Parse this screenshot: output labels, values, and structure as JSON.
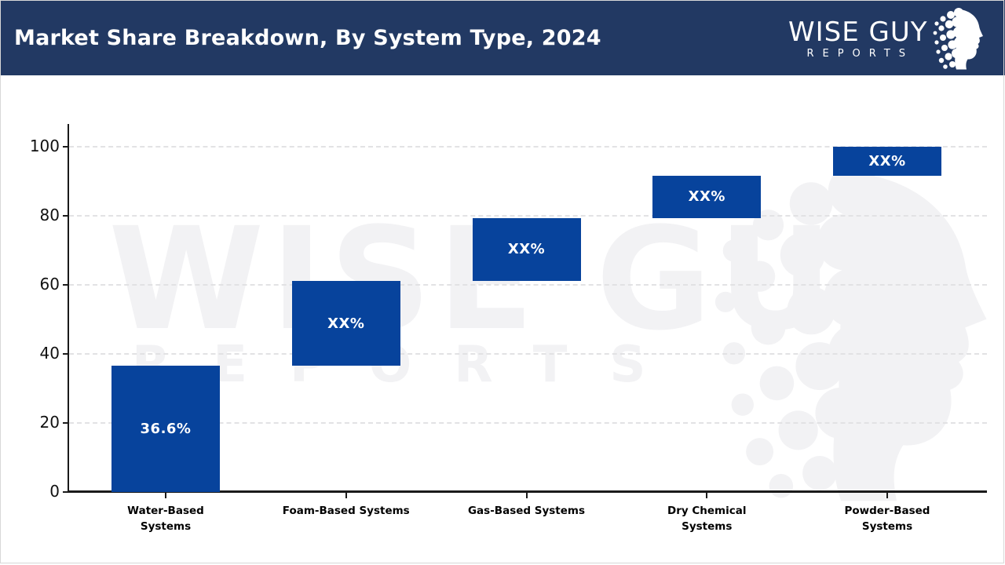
{
  "header": {
    "title": "Market Share Breakdown, By System Type, 2024",
    "logo": {
      "line1": "WISE GUY",
      "line2": "REPORTS"
    }
  },
  "watermark": {
    "line1": "WISE GUY",
    "line2": "REPORTS"
  },
  "colors": {
    "header_bg": "#223963",
    "bar_fill": "#07439c",
    "axis": "#1a1a1a",
    "gridline": "#e2e2e4",
    "watermark": "#f2f2f4",
    "bar_label_text": "#ffffff"
  },
  "chart_data": {
    "type": "bar",
    "subtype": "waterfall",
    "title": "Market Share Breakdown, By System Type, 2024",
    "xlabel": "",
    "ylabel": "",
    "ylim": [
      0,
      105
    ],
    "yticks": [
      0,
      20,
      40,
      60,
      80,
      100
    ],
    "grid": "horizontal-dashed",
    "legend": "none",
    "categories": [
      [
        "Water-Based",
        "Systems"
      ],
      [
        "Foam-Based Systems"
      ],
      [
        "Gas-Based Systems"
      ],
      [
        "Dry Chemical",
        "Systems"
      ],
      [
        "Powder-Based",
        "Systems"
      ]
    ],
    "bars": [
      {
        "category": "Water-Based Systems",
        "start": 0,
        "end": 36.6,
        "label": "36.6%"
      },
      {
        "category": "Foam-Based Systems",
        "start": 36.6,
        "end": 61.1,
        "label": "XX%"
      },
      {
        "category": "Gas-Based Systems",
        "start": 61.1,
        "end": 79.4,
        "label": "XX%"
      },
      {
        "category": "Dry Chemical Systems",
        "start": 79.4,
        "end": 91.6,
        "label": "XX%"
      },
      {
        "category": "Powder-Based Systems",
        "start": 91.6,
        "end": 100,
        "label": "XX%"
      }
    ]
  }
}
